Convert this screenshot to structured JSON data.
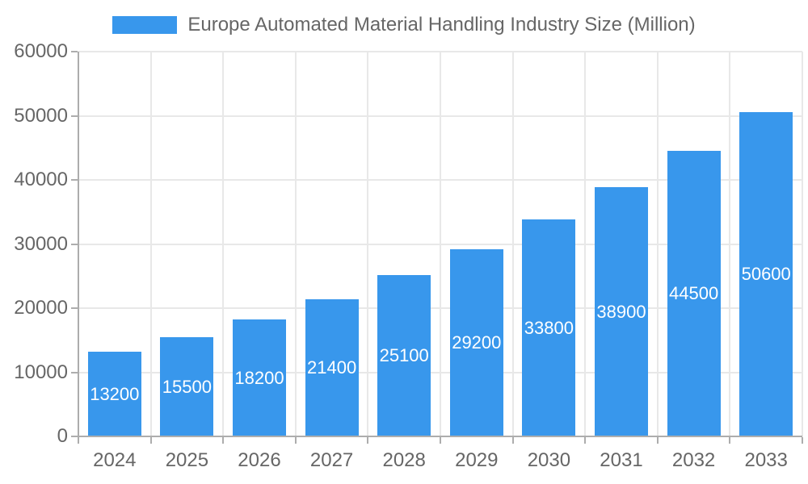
{
  "chart_data": {
    "type": "bar",
    "title": "Europe Automated Material Handling Industry Size (Million)",
    "categories": [
      "2024",
      "2025",
      "2026",
      "2027",
      "2028",
      "2029",
      "2030",
      "2031",
      "2032",
      "2033"
    ],
    "series": [
      {
        "name": "Europe Automated Material Handling Industry Size (Million)",
        "values": [
          13200,
          15500,
          18200,
          21400,
          25100,
          29200,
          33800,
          38900,
          44500,
          50600
        ]
      }
    ],
    "data_labels": [
      "13200",
      "15500",
      "18200",
      "21400",
      "25100",
      "29200",
      "33800",
      "38900",
      "44500",
      "50600"
    ],
    "xlabel": "",
    "ylabel": "",
    "ylim": [
      0,
      60000
    ],
    "yticks": [
      0,
      10000,
      20000,
      30000,
      40000,
      50000,
      60000
    ],
    "ytick_labels": [
      "0",
      "10000",
      "20000",
      "30000",
      "40000",
      "50000",
      "60000"
    ],
    "grid": true,
    "legend_position": "top",
    "colors": {
      "bar_fill": "#3897EC",
      "data_label_text": "#FFFFFF",
      "axis_text": "#666666",
      "grid_line": "#E8E8E8",
      "axis_line": "#ADADAD",
      "background": "#FFFFFF"
    }
  }
}
